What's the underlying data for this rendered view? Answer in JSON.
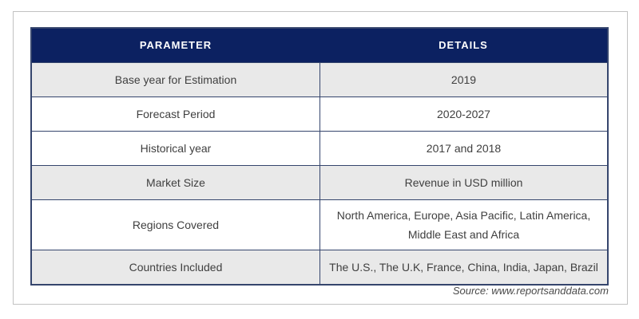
{
  "header": {
    "parameter": "PARAMETER",
    "details": "DETAILS"
  },
  "rows": [
    {
      "parameter": "Base year for Estimation",
      "details": "2019",
      "shaded": true
    },
    {
      "parameter": "Forecast Period",
      "details": "2020-2027",
      "shaded": false
    },
    {
      "parameter": "Historical year",
      "details": "2017 and 2018",
      "shaded": false
    },
    {
      "parameter": "Market Size",
      "details": "Revenue in USD million",
      "shaded": true
    },
    {
      "parameter": "Regions Covered",
      "details": "North America, Europe, Asia Pacific, Latin America, Middle East and Africa",
      "shaded": false
    },
    {
      "parameter": "Countries Included",
      "details": "The U.S., The  U.K, France, China, India, Japan, Brazil",
      "shaded": true
    }
  ],
  "source": "Source: www.reportsanddata.com",
  "colors": {
    "header_bg": "#0c2161",
    "header_text": "#ffffff",
    "table_border": "#35456d",
    "row_shaded_bg": "#e9e9e9",
    "row_bg": "#ffffff",
    "cell_text": "#3f3f3f",
    "card_border": "#c2c2c2",
    "card_bg": "#ffffff",
    "source_text": "#4a4a4a"
  }
}
